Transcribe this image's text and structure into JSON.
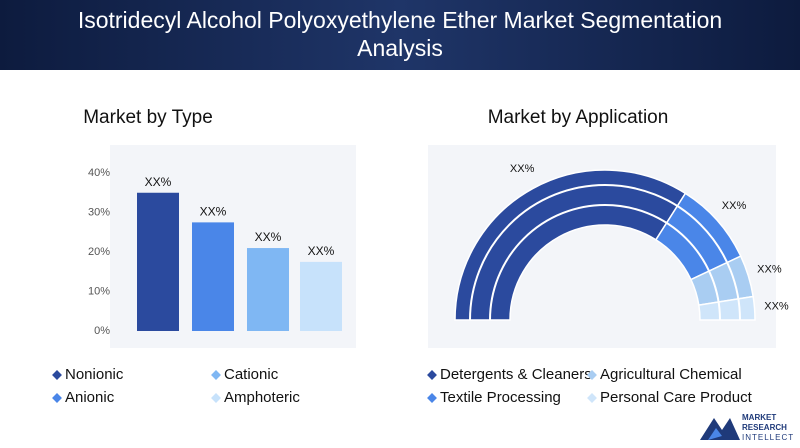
{
  "title": "Isotridecyl Alcohol Polyoxyethylene Ether Market Segmentation Analysis",
  "brand": [
    "MARKET",
    "RESEARCH",
    "INTELLECT"
  ],
  "chart_data": [
    {
      "type": "bar",
      "title": "Market by Type",
      "categories": [
        "Nonionic",
        "Anionic",
        "Cationic",
        "Amphoteric"
      ],
      "values": [
        35,
        27.5,
        21,
        17.5
      ],
      "value_labels": [
        "XX%",
        "XX%",
        "XX%",
        "XX%"
      ],
      "colors": [
        "#2b4a9e",
        "#4a86e8",
        "#7fb7f3",
        "#c7e2fb"
      ],
      "ylim": [
        0,
        40
      ],
      "yticks": [
        {
          "value": 0,
          "label": "0%"
        },
        {
          "value": 10,
          "label": "10%"
        },
        {
          "value": 20,
          "label": "20%"
        },
        {
          "value": 30,
          "label": "30%"
        },
        {
          "value": 40,
          "label": "40%"
        }
      ]
    },
    {
      "type": "pie",
      "title": "Market by Application",
      "categories": [
        "Detergents & Cleaners",
        "Textile Processing",
        "Agricultural Chemical",
        "Personal Care Product"
      ],
      "values": [
        68,
        18,
        9,
        5
      ],
      "value_labels": [
        "XX%",
        "XX%",
        "XX%",
        "XX%"
      ],
      "colors": [
        "#2b4a9e",
        "#4a86e8",
        "#a9cdf2",
        "#cfe5fa"
      ]
    }
  ]
}
